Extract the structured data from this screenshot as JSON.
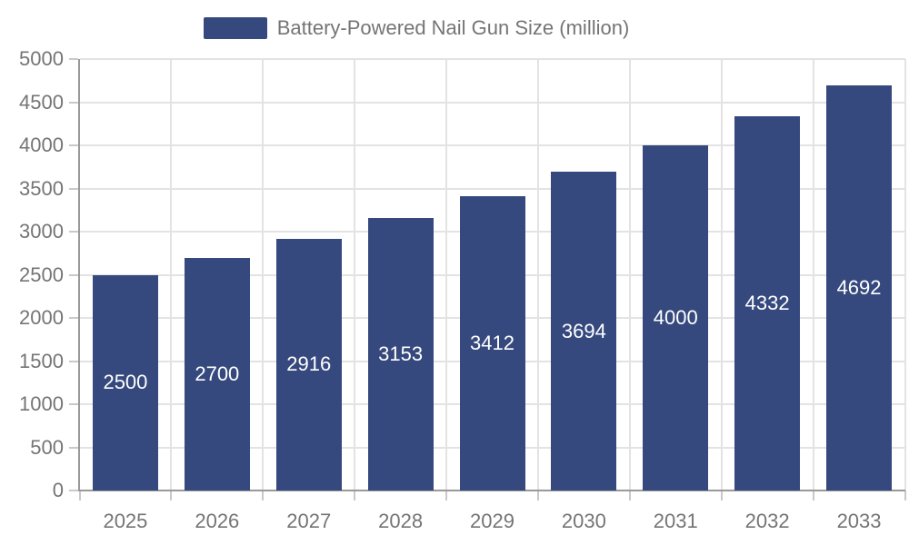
{
  "chart_data": {
    "type": "bar",
    "title": "Battery-Powered Nail Gun Size (million)",
    "legend_label": "Battery-Powered Nail Gun Size (million)",
    "legend_position": "top-center",
    "categories": [
      "2025",
      "2026",
      "2027",
      "2028",
      "2029",
      "2030",
      "2031",
      "2032",
      "2033"
    ],
    "values": [
      2500,
      2700,
      2916,
      3153,
      3412,
      3694,
      4000,
      4332,
      4692
    ],
    "xlabel": "",
    "ylabel": "",
    "ylim": [
      0,
      5000
    ],
    "ytick_interval": 500,
    "ytick_labels": [
      0,
      500,
      1000,
      1500,
      2000,
      2500,
      3000,
      3500,
      4000,
      4500,
      5000
    ],
    "grid": true,
    "value_labels_inside_bars": true,
    "colors": {
      "bar": "#36497E",
      "axis_label": "#757575",
      "legend_text": "#757575",
      "grid_line": "#e3e3e3",
      "axis_line": "#999999",
      "tick": "#c9c9c9",
      "value_label": "#ffffff",
      "background": "#ffffff"
    }
  }
}
